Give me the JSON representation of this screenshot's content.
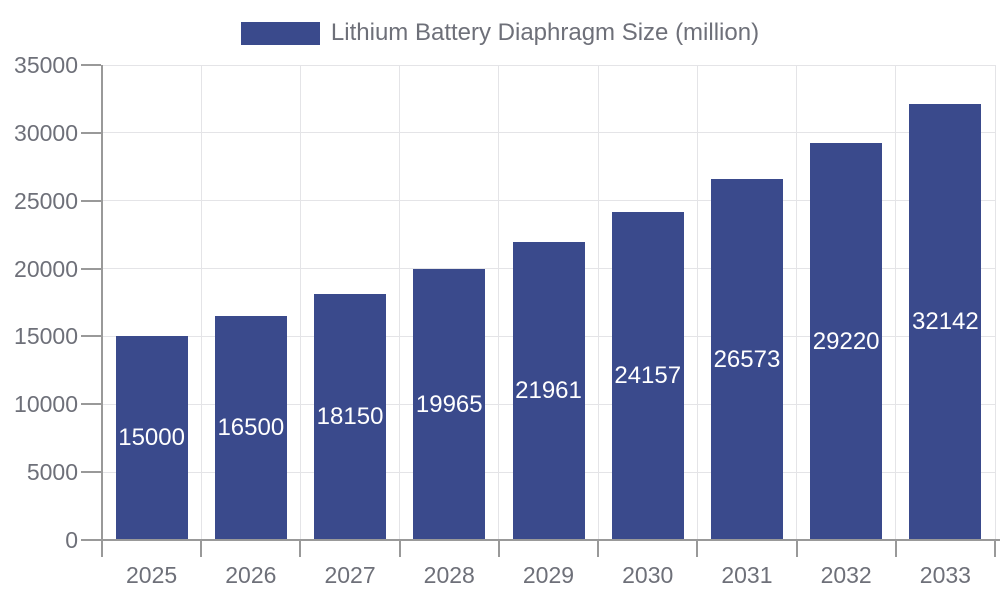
{
  "legend": {
    "label": "Lithium Battery Diaphragm Size (million)"
  },
  "colors": {
    "bar": "#3A4A8C",
    "axis_line": "#999999",
    "grid_line": "#E4E4E7",
    "axis_text": "#6E7079",
    "bar_label_text": "#FFFFFF",
    "background": "#FFFFFF"
  },
  "chart_data": {
    "type": "bar",
    "title": "Lithium Battery Diaphragm Size (million)",
    "categories": [
      "2025",
      "2026",
      "2027",
      "2028",
      "2029",
      "2030",
      "2031",
      "2032",
      "2033"
    ],
    "values": [
      15000,
      16500,
      18150,
      19965,
      21961,
      24157,
      26573,
      29220,
      32142
    ],
    "xlabel": "",
    "ylabel": "",
    "ylim": [
      0,
      35000
    ],
    "ytick_interval": 5000,
    "ytick_labels": [
      "0",
      "5000",
      "10000",
      "15000",
      "20000",
      "25000",
      "30000",
      "35000"
    ],
    "grid": true,
    "legend_position": "top-center",
    "value_labels": "inside-center"
  }
}
